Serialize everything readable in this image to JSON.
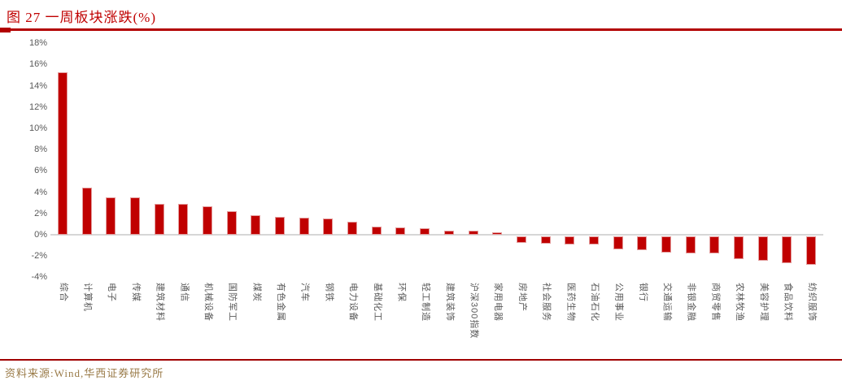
{
  "figure": {
    "title": "图 27 一周板块涨跌(%)",
    "source": "资料来源:Wind,华西证券研究所"
  },
  "colors": {
    "title_red": "#c00000",
    "top_rule_red": "#b20000",
    "bottom_rule_red": "#a00000",
    "bar_fill": "#c00000",
    "bar_border": "#e39c9c",
    "axis_text_gray": "#595959",
    "axis_line_gray": "#d6d6d6",
    "source_text_brown": "#9a7b48"
  },
  "chart_data": {
    "type": "bar",
    "title": "图 27 一周板块涨跌(%)",
    "xlabel": "",
    "ylabel": "",
    "ylim": [
      -4,
      18
    ],
    "grid": false,
    "legend": "none",
    "bar_color": "#c00000",
    "bar_border_color": "#e39c9c",
    "ytick_format": "percent",
    "yticks": [
      {
        "v": 18,
        "label": "18%"
      },
      {
        "v": 16,
        "label": "16%"
      },
      {
        "v": 14,
        "label": "14%"
      },
      {
        "v": 12,
        "label": "12%"
      },
      {
        "v": 10,
        "label": "10%"
      },
      {
        "v": 8,
        "label": "8%"
      },
      {
        "v": 6,
        "label": "6%"
      },
      {
        "v": 4,
        "label": "4%"
      },
      {
        "v": 2,
        "label": "2%"
      },
      {
        "v": 0,
        "label": "0%"
      },
      {
        "v": -2,
        "label": "-2%"
      },
      {
        "v": -4,
        "label": "-4%"
      }
    ],
    "categories": [
      "综合",
      "计算机",
      "电子",
      "传媒",
      "建筑材料",
      "通信",
      "机械设备",
      "国防军工",
      "煤炭",
      "有色金属",
      "汽车",
      "钢铁",
      "电力设备",
      "基础化工",
      "环保",
      "轻工制造",
      "建筑装饰",
      "沪深300指数",
      "家用电器",
      "房地产",
      "社会服务",
      "医药生物",
      "石油石化",
      "公用事业",
      "银行",
      "交通运输",
      "非银金融",
      "商贸零售",
      "农林牧渔",
      "美容护理",
      "食品饮料",
      "纺织服饰"
    ],
    "values": [
      15.3,
      4.4,
      3.5,
      3.5,
      2.9,
      2.9,
      2.7,
      2.2,
      1.8,
      1.7,
      1.6,
      1.5,
      1.2,
      0.8,
      0.7,
      0.6,
      0.4,
      0.4,
      0.2,
      -0.6,
      -0.7,
      -0.8,
      -0.8,
      -1.2,
      -1.3,
      -1.5,
      -1.6,
      -1.6,
      -2.1,
      -2.3,
      -2.5,
      -2.7
    ]
  }
}
